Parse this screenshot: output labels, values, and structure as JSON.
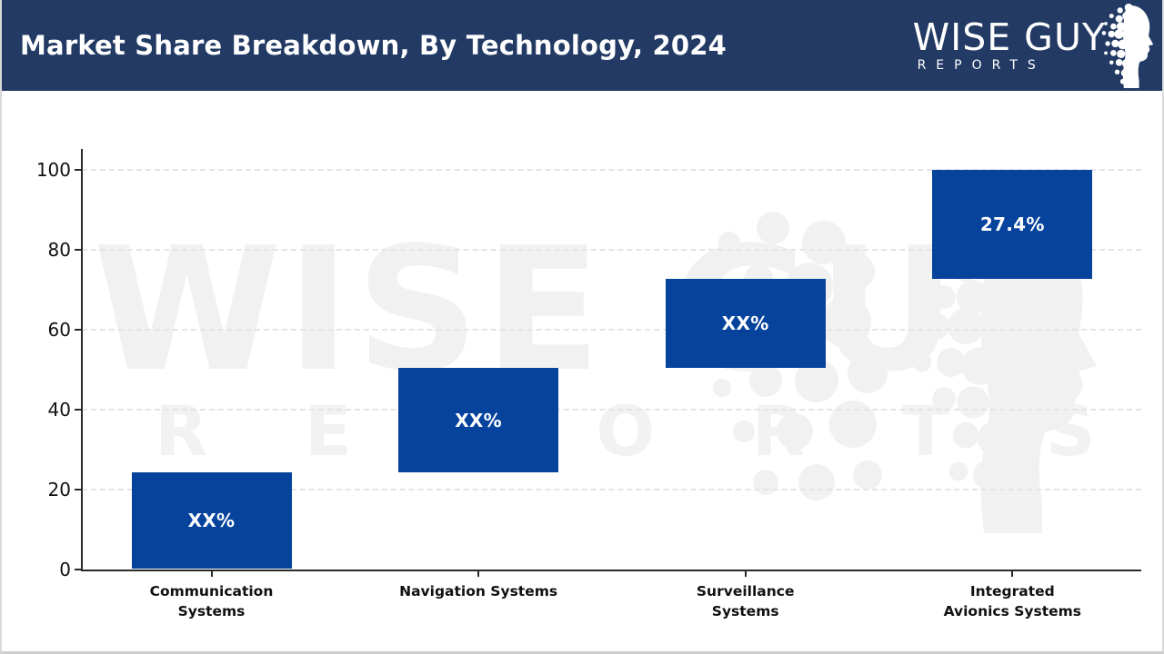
{
  "header": {
    "title": "Market Share Breakdown, By Technology, 2024",
    "bg_color": "#223A64",
    "logo": {
      "line1": "WISE GUY",
      "line2": "REPORTS"
    }
  },
  "watermark": {
    "line1": "WISE GUY",
    "line2": "R E P O R T S"
  },
  "chart_data": {
    "type": "bar",
    "subtype": "waterfall-floating-bars",
    "title": "Market Share Breakdown, By Technology, 2024",
    "categories": [
      "Communication Systems",
      "Navigation Systems",
      "Surveillance Systems",
      "Integrated Avionics Systems"
    ],
    "category_label_lines": [
      "Communication\nSystems",
      "Navigation Systems",
      "Surveillance\nSystems",
      "Integrated\nAvionics Systems"
    ],
    "segments": [
      {
        "category": "Communication Systems",
        "start": 0,
        "end": 24.2,
        "value_label": "XX%"
      },
      {
        "category": "Navigation Systems",
        "start": 24.2,
        "end": 50.3,
        "value_label": "XX%"
      },
      {
        "category": "Surveillance Systems",
        "start": 50.3,
        "end": 72.6,
        "value_label": "XX%"
      },
      {
        "category": "Integrated Avionics Systems",
        "start": 72.6,
        "end": 100,
        "value_label": "27.4%"
      }
    ],
    "ylim": [
      0,
      100
    ],
    "yticks": [
      0,
      20,
      40,
      60,
      80,
      100
    ],
    "xlabel": "",
    "ylabel": "",
    "grid": "horizontal-dashed",
    "legend": false,
    "bar_color": "#05439C"
  }
}
